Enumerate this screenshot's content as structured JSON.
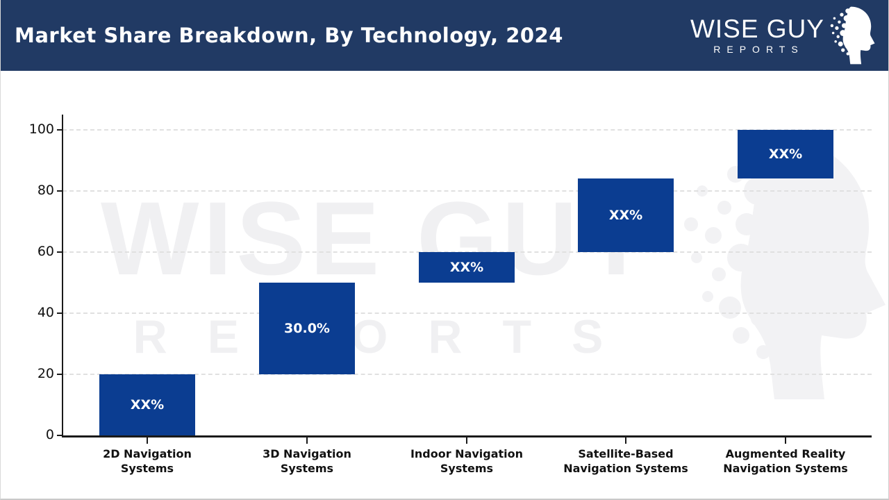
{
  "header": {
    "title": "Market Share Breakdown, By Technology, 2024",
    "logo": {
      "line1": "WISE GUY",
      "line2": "REPORTS"
    }
  },
  "watermark": {
    "line1": "WISE GUY",
    "line2": "REPORTS"
  },
  "colors": {
    "header_bg": "#213a64",
    "bar": "#0b3d91",
    "bar_label": "#ffffff",
    "axis": "#1a1a1a",
    "gridline": "#e0e0e0",
    "watermark": "#f0f0f2"
  },
  "chart_data": {
    "type": "bar",
    "variant": "waterfall",
    "title": "Market Share Breakdown, By Technology, 2024",
    "categories": [
      "2D Navigation Systems",
      "3D Navigation Systems",
      "Indoor Navigation Systems",
      "Satellite-Based Navigation Systems",
      "Augmented Reality Navigation Systems"
    ],
    "category_lines": [
      [
        "2D Navigation",
        "Systems"
      ],
      [
        "3D Navigation",
        "Systems"
      ],
      [
        "Indoor Navigation",
        "Systems"
      ],
      [
        "Satellite-Based",
        "Navigation Systems"
      ],
      [
        "Augmented Reality",
        "Navigation Systems"
      ]
    ],
    "segments": [
      {
        "category": "2D Navigation Systems",
        "start": 0,
        "end": 20,
        "label": "XX%"
      },
      {
        "category": "3D Navigation Systems",
        "start": 20,
        "end": 50,
        "label": "30.0%"
      },
      {
        "category": "Indoor Navigation Systems",
        "start": 50,
        "end": 60,
        "label": "XX%"
      },
      {
        "category": "Satellite-Based Navigation Systems",
        "start": 60,
        "end": 84,
        "label": "XX%"
      },
      {
        "category": "Augmented Reality Navigation Systems",
        "start": 84,
        "end": 100,
        "label": "XX%"
      }
    ],
    "values": [
      20,
      30,
      10,
      24,
      16
    ],
    "cumulative": [
      20,
      50,
      60,
      84,
      100
    ],
    "ylabel": "",
    "xlabel": "",
    "ylim": [
      0,
      100
    ],
    "yticks": [
      0,
      20,
      40,
      60,
      80,
      100
    ],
    "grid": "dashed-horizontal",
    "legend": "none"
  }
}
